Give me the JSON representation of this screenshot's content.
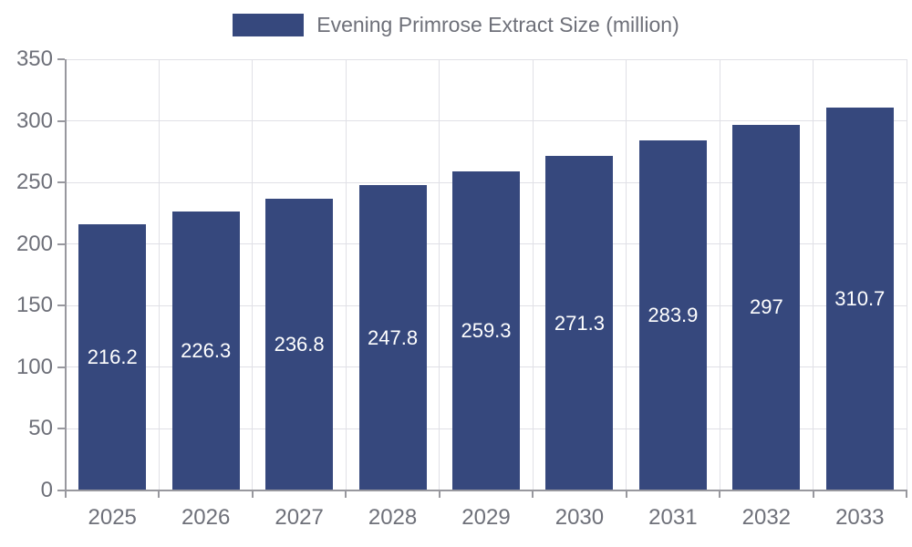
{
  "colors": {
    "bar": "#36487d",
    "grid": "#e0e0e6",
    "axis": "#98989e",
    "tick_label": "#6e7079",
    "value_label": "#ffffff",
    "background": "#ffffff"
  },
  "chart_data": {
    "type": "bar",
    "title": "",
    "legend": {
      "position": "top",
      "label": "Evening Primrose Extract Size (million)"
    },
    "categories": [
      "2025",
      "2026",
      "2027",
      "2028",
      "2029",
      "2030",
      "2031",
      "2032",
      "2033"
    ],
    "series": [
      {
        "name": "Evening Primrose Extract Size (million)",
        "color": "#36487d",
        "values": [
          216.2,
          226.3,
          236.8,
          247.8,
          259.3,
          271.3,
          283.9,
          297,
          310.7
        ],
        "value_labels": [
          "216.2",
          "226.3",
          "236.8",
          "247.8",
          "259.3",
          "271.3",
          "283.9",
          "297",
          "310.7"
        ]
      }
    ],
    "xlabel": "",
    "ylabel": "",
    "ylim": [
      0,
      350
    ],
    "yticks": [
      0,
      50,
      100,
      150,
      200,
      250,
      300,
      350
    ],
    "grid": true
  }
}
